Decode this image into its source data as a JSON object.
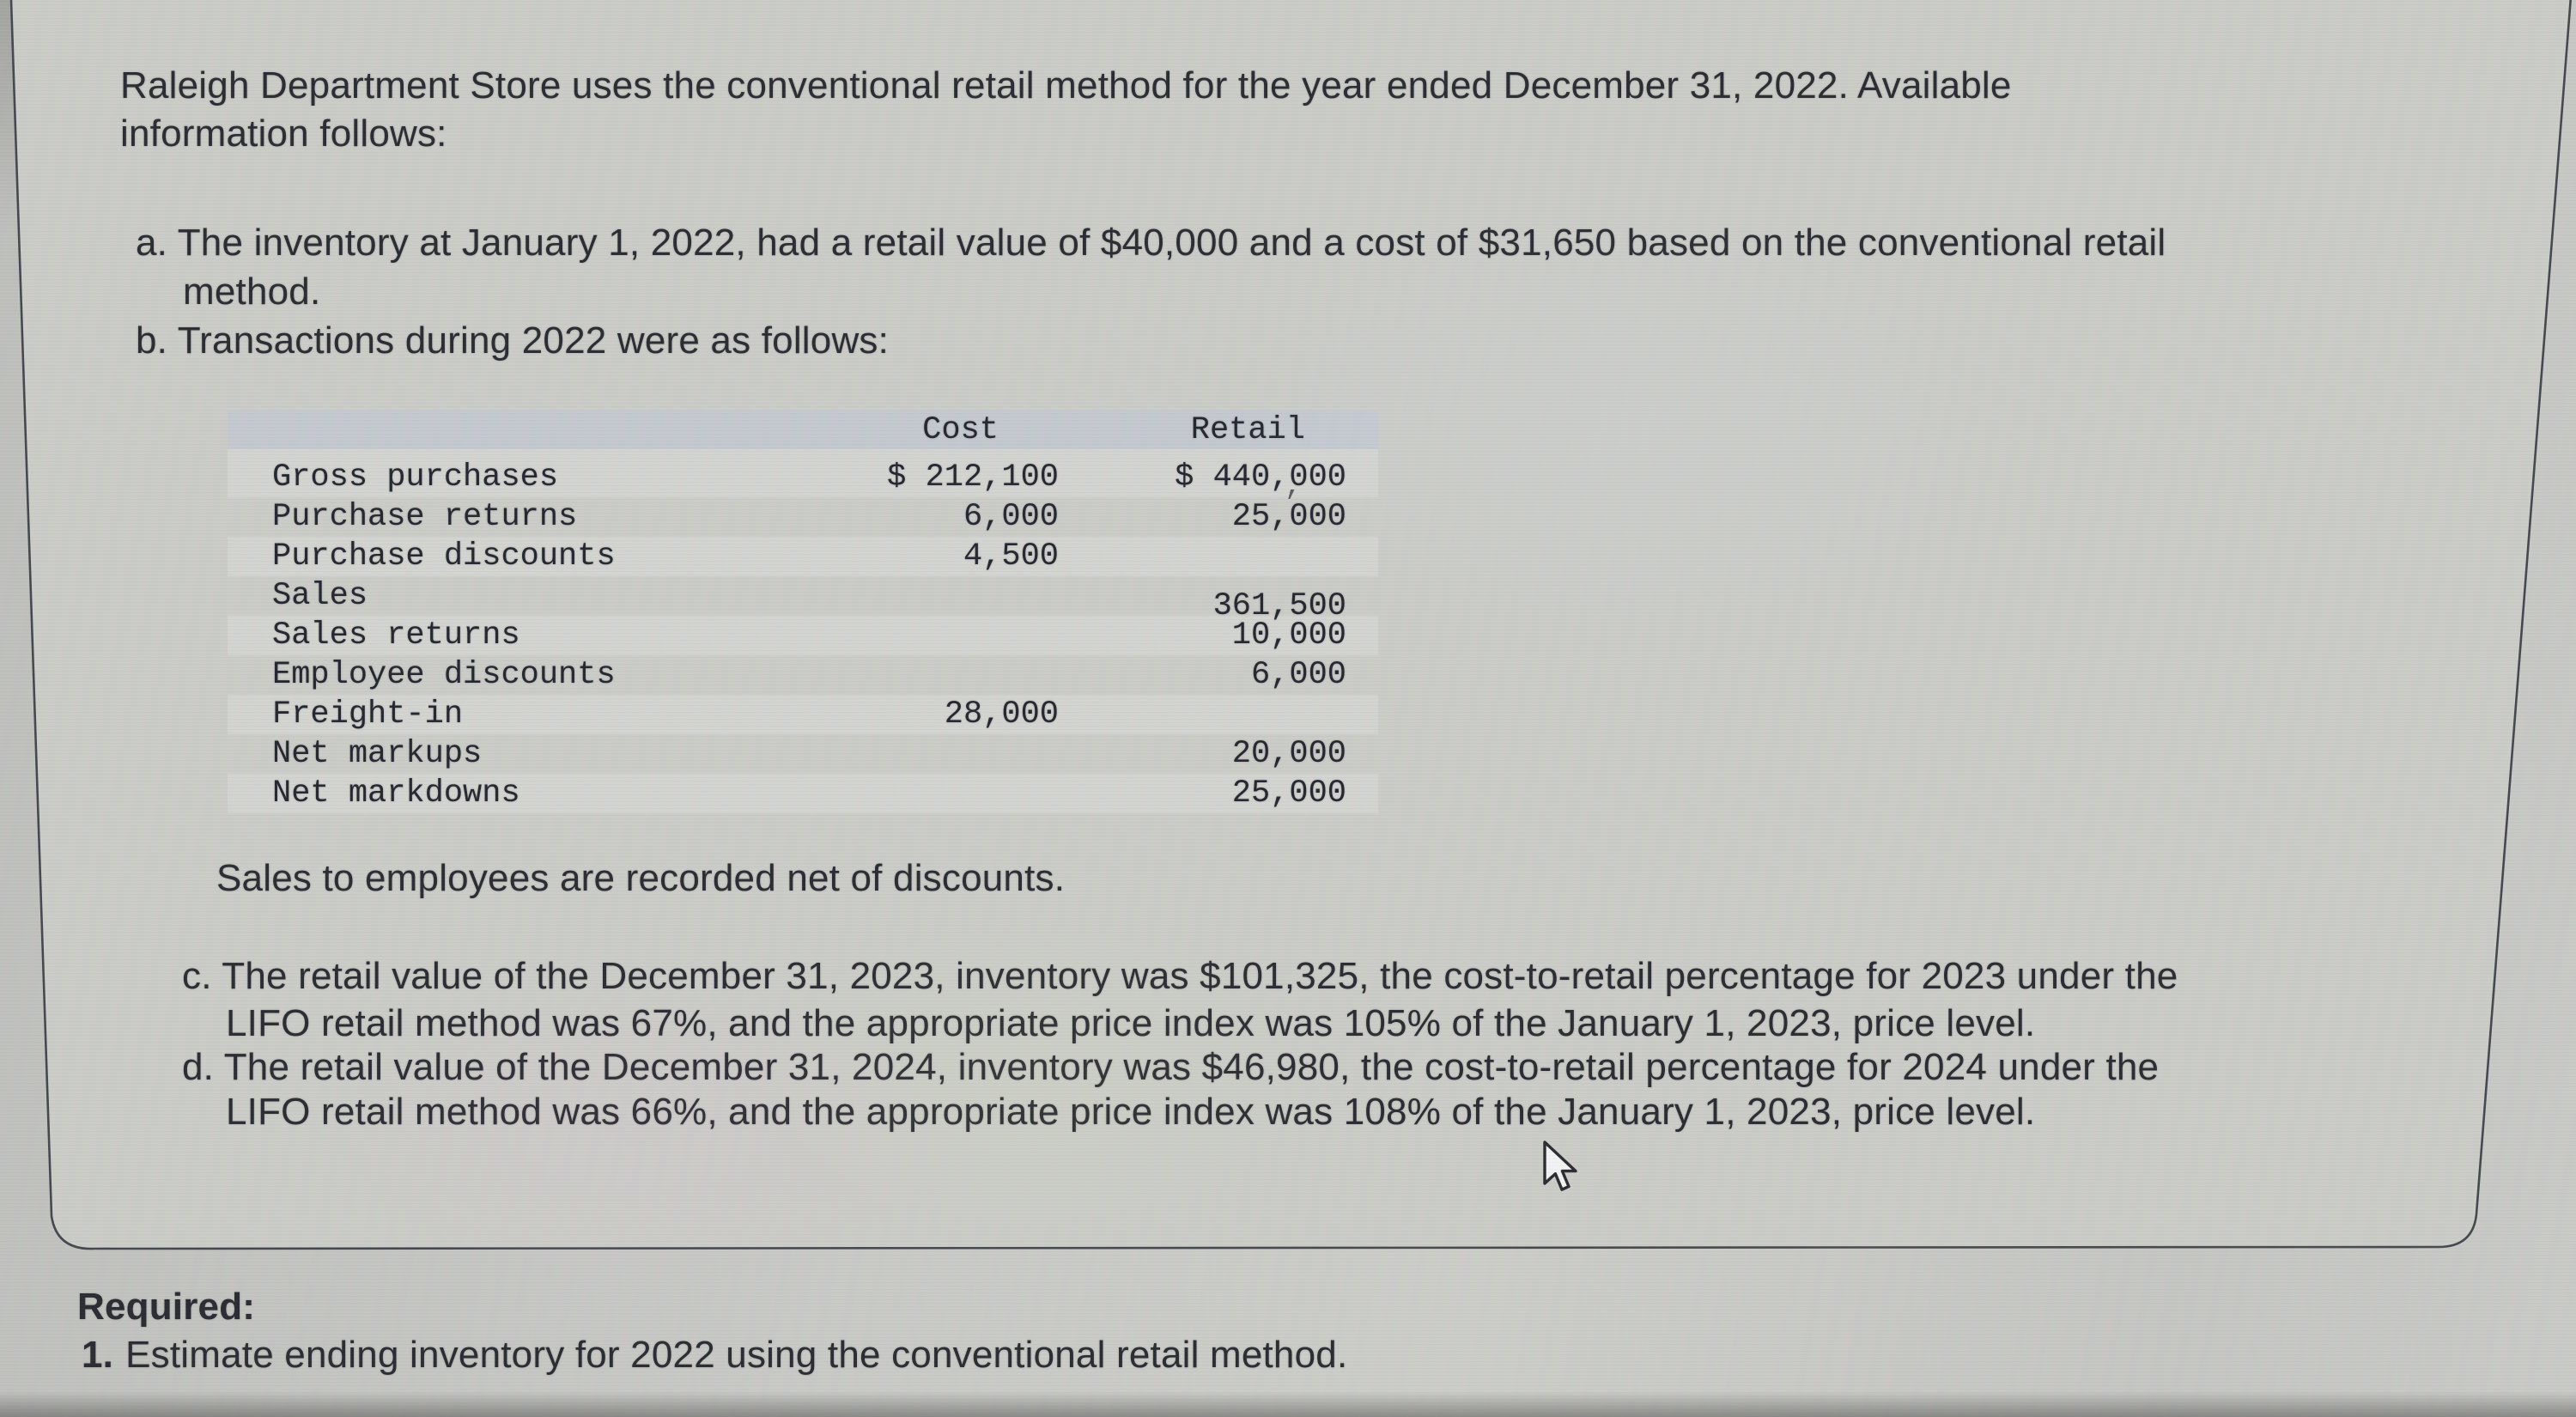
{
  "page": {
    "intro": {
      "line1": "Raleigh Department Store uses the conventional retail method for the year ended December 31, 2022. Available",
      "line2": "information follows:"
    },
    "items": {
      "a1": "a. The inventory at January 1, 2022, had a retail value of $40,000 and a cost of $31,650 based on the conventional retail",
      "a2": "method.",
      "b": "b. Transactions during 2022 were as follows:",
      "c1": "c. The retail value of the December 31, 2023, inventory was $101,325, the cost-to-retail percentage for 2023 under the",
      "c2": "LIFO retail method was 67%, and the appropriate price index was 105% of the January 1, 2023, price level.",
      "d1": "d. The retail value of the December 31, 2024, inventory was $46,980, the cost-to-retail percentage for 2024 under the",
      "d2": "LIFO retail method was 66%, and the appropriate price index was 108% of the January 1, 2023, price level."
    },
    "note": "Sales to employees are recorded net of discounts.",
    "table": {
      "headers": {
        "cost": "Cost",
        "retail": "Retail"
      },
      "rows": [
        {
          "label": "Gross purchases",
          "cost": "$ 212,100",
          "retail": "$ 440,000"
        },
        {
          "label": "Purchase returns",
          "cost": "6,000",
          "retail": "25,000"
        },
        {
          "label": "Purchase discounts",
          "cost": "4,500",
          "retail": ""
        },
        {
          "label": "Sales",
          "cost": "",
          "retail": "361,500"
        },
        {
          "label": "Sales returns",
          "cost": "",
          "retail": "10,000"
        },
        {
          "label": "Employee discounts",
          "cost": "",
          "retail": "6,000"
        },
        {
          "label": "Freight-in",
          "cost": "28,000",
          "retail": ""
        },
        {
          "label": "Net markups",
          "cost": "",
          "retail": "20,000"
        },
        {
          "label": "Net markdowns",
          "cost": "",
          "retail": "25,000"
        }
      ],
      "stray_mark": ","
    },
    "required": {
      "heading": "Required:",
      "item_number": "1.",
      "item_text": "Estimate ending inventory for 2022 using the conventional retail method."
    },
    "colors": {
      "card_background": "#cbccc7",
      "page_background": "#c5c6c2",
      "table_header_band": "#c4c9cf",
      "text": "#2a2b31",
      "card_border": "#44474d"
    }
  }
}
